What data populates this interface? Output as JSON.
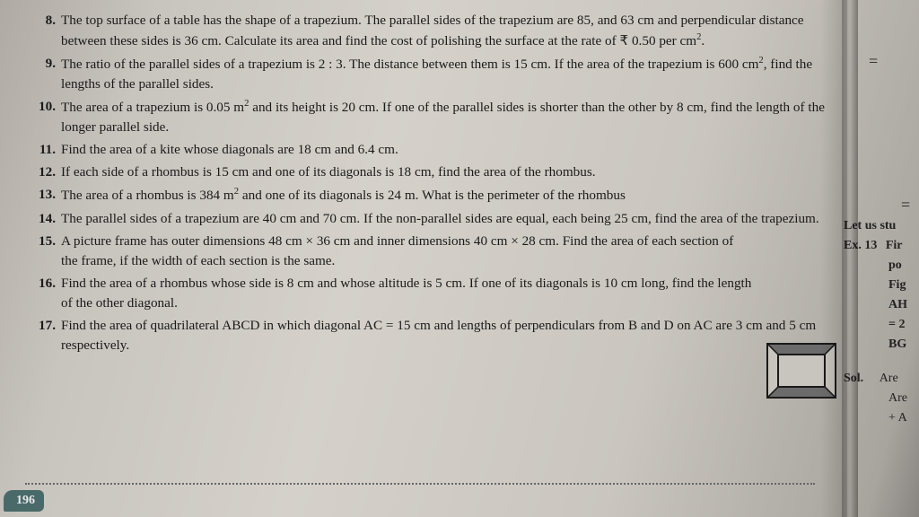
{
  "questions": [
    {
      "n": "8.",
      "html": "The top surface of a table has the shape of a trapezium. The parallel sides of the trapezium are 85, and 63 cm and perpendicular distance between these sides is 36 cm. Calculate its area and find the cost of polishing the surface at the rate of <span class='rupee'></span> 0.50 per cm<sup>2</sup>."
    },
    {
      "n": "9.",
      "html": "The ratio of the parallel sides of a trapezium is 2 : 3. The distance between them is 15 cm. If the area of the trapezium is 600 cm<sup>2</sup>, find the lengths of the parallel sides."
    },
    {
      "n": "10.",
      "html": "The area of a trapezium is 0.05 m<sup>2</sup> and its height is 20 cm. If one of the parallel sides is shorter than the other by 8 cm, find the length of the longer parallel side."
    },
    {
      "n": "11.",
      "html": "Find the area of a kite whose diagonals are 18 cm and 6.4 cm."
    },
    {
      "n": "12.",
      "html": "If each side of a rhombus is 15 cm and one of its diagonals is 18 cm, find the area of the rhombus."
    },
    {
      "n": "13.",
      "html": "The area of a rhombus is 384 m<sup>2</sup> and one of its diagonals is 24 m. What is the perimeter of the rhombus"
    },
    {
      "n": "14.",
      "html": "The parallel sides of a trapezium are 40 cm and 70 cm. If the non-parallel sides are equal, each being 25 cm, find the area of the trapezium."
    },
    {
      "n": "15.",
      "html": "A picture frame has outer dimensions 48 cm &times; 36 cm and inner dimensions 40 cm &times; 28 cm. Find the area of each section of the frame, if the width of each section is the same."
    },
    {
      "n": "16.",
      "html": "Find the area of a rhombus whose side is 8 cm and whose altitude is 5 cm. If one of its diagonals is 10 cm long, find the length of the other diagonal."
    },
    {
      "n": "17.",
      "html": "Find the area of quadrilateral ABCD in which diagonal AC = 15 cm and lengths of perpendiculars from B and D on AC are 3 cm and 5 cm respectively."
    }
  ],
  "rightCol": {
    "eq1": "=",
    "eq2": "=",
    "let": "Let us stu",
    "ex": "Ex. 13",
    "fir": "Fir",
    "po": "po",
    "fig": "Fig",
    "ah": "AH",
    "e2": "= 2",
    "bg": "BG",
    "sol": "Sol.",
    "are1": "Are",
    "are2": "Are",
    "pa": "+ A"
  },
  "frame": {
    "outer_w": 78,
    "outer_h": 62,
    "inner_w": 52,
    "inner_h": 36,
    "stroke": "#1a1a1a",
    "fill": "#c8c4be",
    "shade": "#6b6b6b"
  },
  "pageNum": "196"
}
